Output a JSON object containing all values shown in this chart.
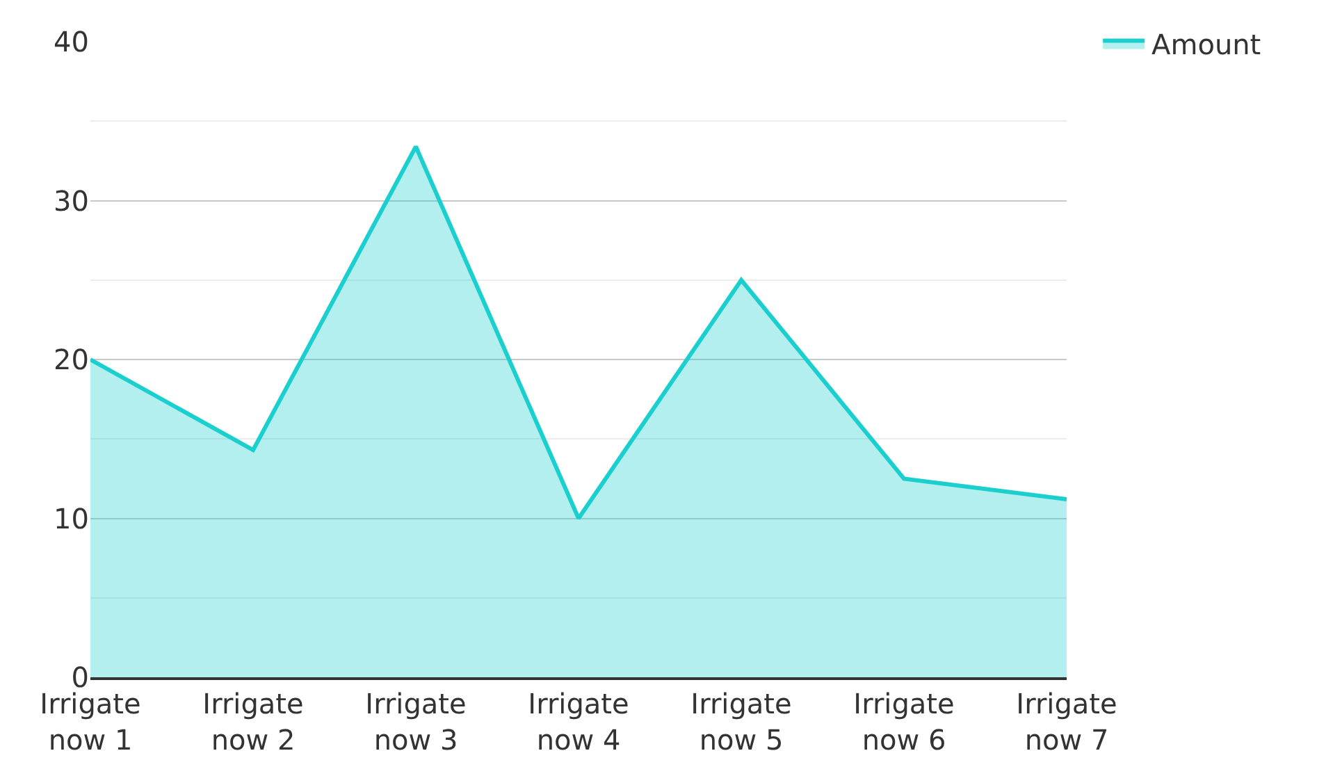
{
  "chart_data": {
    "type": "area",
    "categories": [
      "Irrigate now 1",
      "Irrigate now 2",
      "Irrigate now 3",
      "Irrigate now 4",
      "Irrigate now 5",
      "Irrigate now 6",
      "Irrigate now 7"
    ],
    "series": [
      {
        "name": "Amount",
        "color": "#1ccfcf",
        "values": [
          20,
          14.3,
          33.4,
          10,
          25,
          12.5,
          11.2
        ]
      }
    ],
    "ylim": [
      0,
      40
    ],
    "yticks": [
      0,
      10,
      20,
      30,
      40
    ],
    "grid": "y",
    "legend": "top right"
  }
}
